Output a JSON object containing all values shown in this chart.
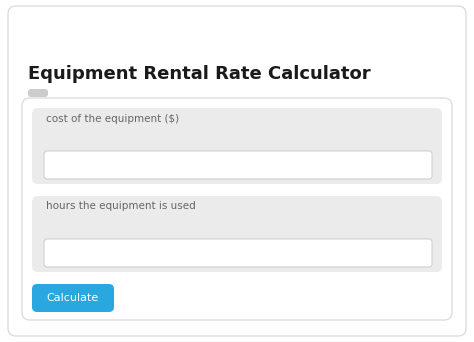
{
  "title": "Equipment Rental Rate Calculator",
  "title_fontsize": 13,
  "title_color": "#1a1a1a",
  "bg_color": "#ffffff",
  "card_bg": "#ffffff",
  "card_border": "#dddddd",
  "field_bg_color": "#ebebeb",
  "input_bg_color": "#ffffff",
  "input_border_color": "#cccccc",
  "label1": "cost of the equipment ($)",
  "label2": "hours the equipment is used",
  "label_color": "#666666",
  "label_fontsize": 7.5,
  "button_text": "Calculate",
  "button_bg": "#29a8e0",
  "button_text_color": "#ffffff",
  "button_fontsize": 8,
  "small_pill_color": "#cccccc",
  "outer_border_color": "#dddddd"
}
